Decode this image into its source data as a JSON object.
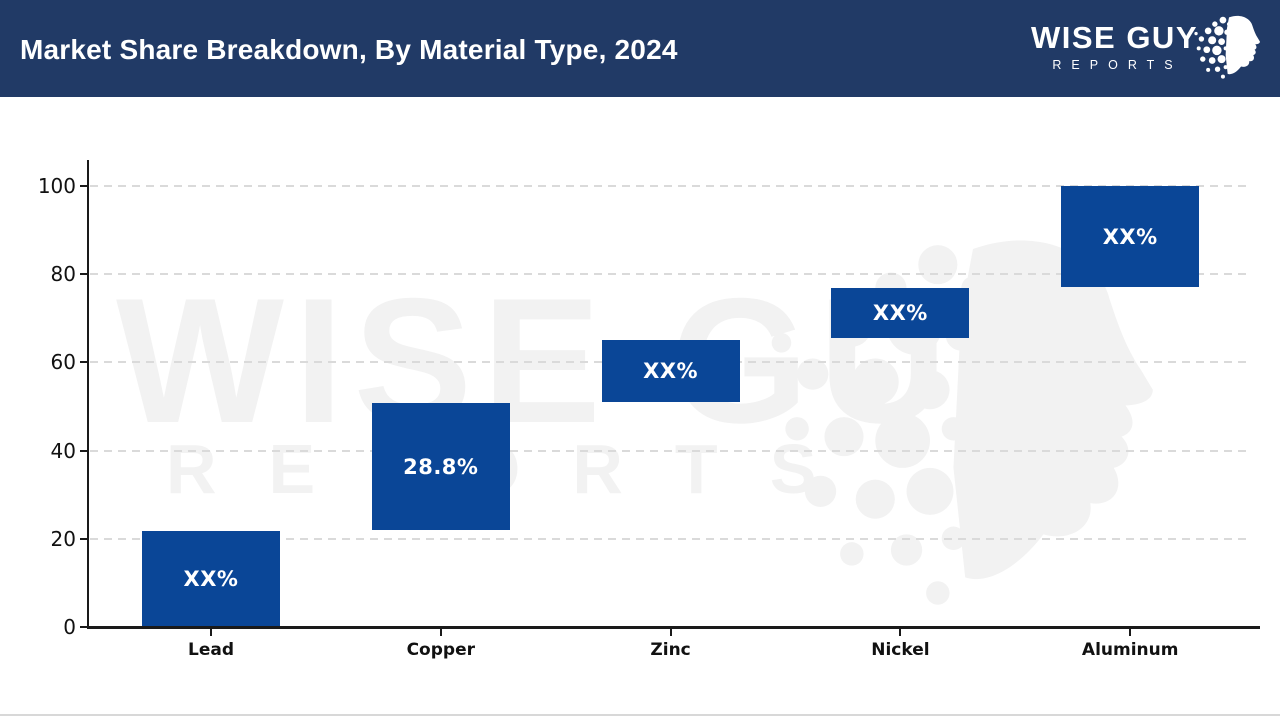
{
  "header": {
    "title": "Market Share Breakdown, By Material Type, 2024",
    "logo": {
      "line1": "WISE GUY",
      "line2": "REPORTS"
    }
  },
  "watermark": {
    "line1": "WISE GUY",
    "line2": "REPORTS"
  },
  "chart_data": {
    "type": "bar",
    "subtype": "waterfall-floating-bars",
    "title": "Market Share Breakdown, By Material Type, 2024",
    "categories": [
      "Lead",
      "Copper",
      "Zinc",
      "Nickel",
      "Aluminum"
    ],
    "bars": [
      {
        "category": "Lead",
        "start": 0,
        "end": 21.8,
        "label": "XX%"
      },
      {
        "category": "Copper",
        "start": 21.9,
        "end": 50.7,
        "label": "28.8%"
      },
      {
        "category": "Zinc",
        "start": 51.0,
        "end": 65.1,
        "label": "XX%"
      },
      {
        "category": "Nickel",
        "start": 65.6,
        "end": 76.8,
        "label": "XX%"
      },
      {
        "category": "Aluminum",
        "start": 77.0,
        "end": 100.0,
        "label": "XX%"
      }
    ],
    "yticks": [
      0,
      20,
      40,
      60,
      80,
      100
    ],
    "ylim": [
      0,
      106
    ],
    "xlabel": "",
    "ylabel": "",
    "grid": "horizontal-dashed",
    "legend": "none",
    "bar_color": "#0a4697",
    "bar_label_color": "#ffffff",
    "axis_color": "#1a1a1a",
    "grid_color": "#dadada",
    "header_color": "#213a66",
    "watermark_color": "#f2f2f2"
  }
}
